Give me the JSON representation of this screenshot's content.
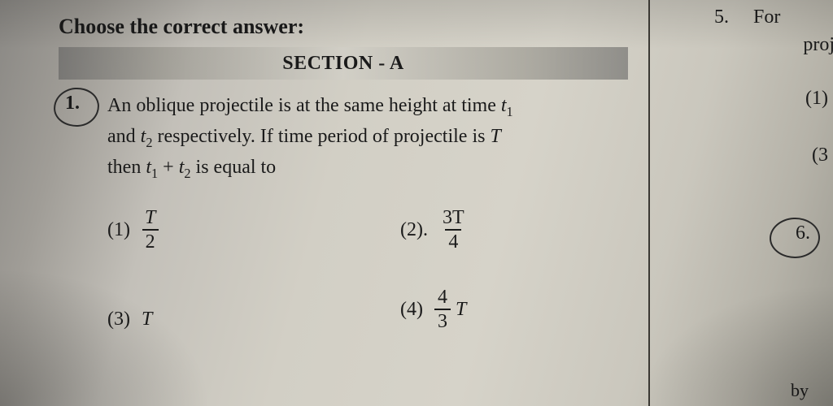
{
  "instruction": "Choose the correct answer:",
  "section_title": "SECTION - A",
  "question": {
    "number": "1.",
    "line1_a": "An oblique projectile is at the same height at time ",
    "line1_t1_var": "t",
    "line1_t1_sub": "1",
    "line2_a": "and ",
    "line2_t2_var": "t",
    "line2_t2_sub": "2",
    "line2_b": " respectively. If time period of projectile is ",
    "line2_T": "T",
    "line3_a": "then ",
    "line3_t1_var": "t",
    "line3_t1_sub": "1",
    "line3_plus": " + ",
    "line3_t2_var": "t",
    "line3_t2_sub": "2",
    "line3_b": " is equal to"
  },
  "options": {
    "o1_label": "(1)",
    "o1_num": "T",
    "o1_den": "2",
    "o2_label": "(2).",
    "o2_num": "3T",
    "o2_den": "4",
    "o3_label": "(3)",
    "o3_text": "T",
    "o4_label": "(4)",
    "o4_num": "4",
    "o4_den": "3",
    "o4_suffix": "T"
  },
  "right": {
    "q5_label": "5.",
    "q5_word": "For",
    "proj": "proj",
    "paren1": "(1)",
    "paren3": "(3",
    "q6_label": "6.",
    "by": "by"
  }
}
